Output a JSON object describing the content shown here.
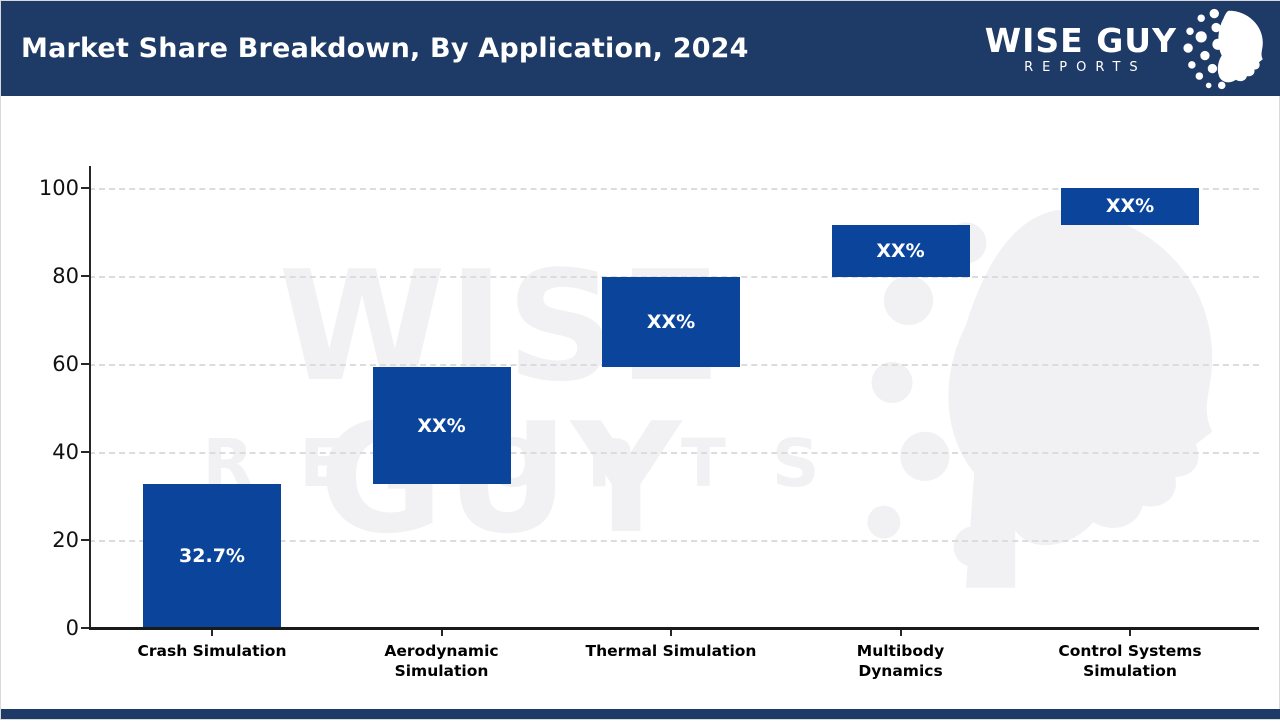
{
  "header": {
    "title": "Market Share Breakdown, By Application, 2024",
    "bg_color": "#1e3a66",
    "text_color": "#ffffff",
    "logo": {
      "line1": "WISE GUY",
      "line2": "REPORTS"
    }
  },
  "watermark": {
    "line1": "WISE GUY",
    "line2": "REPORTS"
  },
  "chart_data": {
    "type": "bar",
    "subtype": "waterfall",
    "title": "Market Share Breakdown, By Application, 2024",
    "xlabel": "",
    "ylabel": "",
    "categories": [
      "Crash Simulation",
      "Aerodynamic Simulation",
      "Thermal Simulation",
      "Multibody Dynamics",
      "Control Systems Simulation"
    ],
    "segments": [
      {
        "category": "Crash Simulation",
        "start": 0,
        "end": 32.7,
        "label": "32.7%"
      },
      {
        "category": "Aerodynamic Simulation",
        "start": 32.7,
        "end": 59.3,
        "label": "XX%"
      },
      {
        "category": "Thermal Simulation",
        "start": 59.3,
        "end": 79.8,
        "label": "XX%"
      },
      {
        "category": "Multibody Dynamics",
        "start": 79.8,
        "end": 91.7,
        "label": "XX%"
      },
      {
        "category": "Control Systems Simulation",
        "start": 91.7,
        "end": 100,
        "label": "XX%"
      }
    ],
    "ylim": [
      0,
      100
    ],
    "yticks": [
      0,
      20,
      40,
      60,
      80,
      100
    ],
    "grid": "horizontal-dashed",
    "legend": "none",
    "bar_color": "#0a449b",
    "label_color": "#ffffff",
    "axis_color": "#262626",
    "gridline_color": "#dcdcdc"
  },
  "footer": {
    "bg_color": "#1e3a66"
  }
}
